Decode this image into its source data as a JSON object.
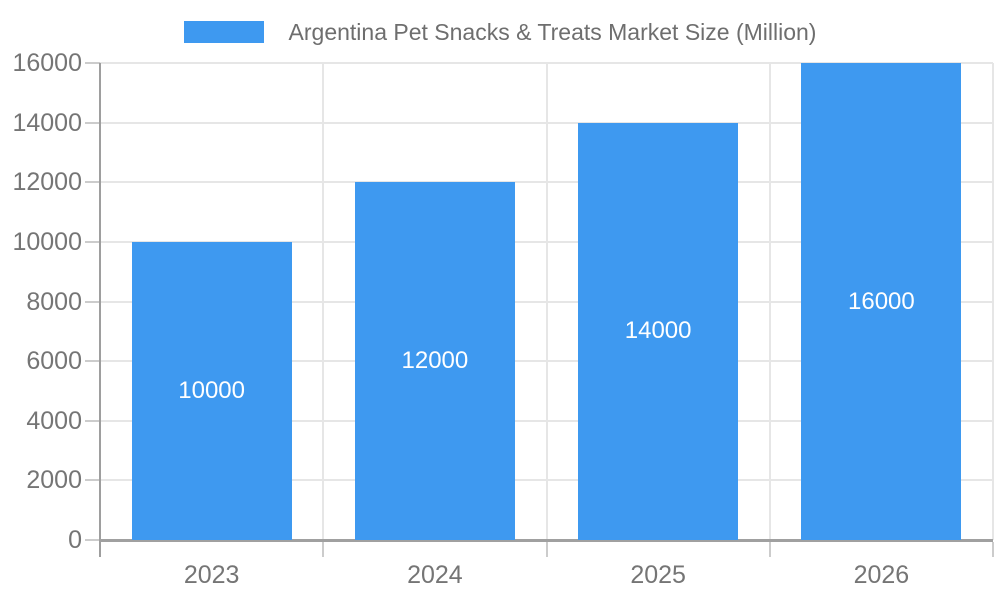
{
  "legend": {
    "label": "Argentina Pet Snacks & Treats Market Size (Million)",
    "swatch_color": "#3E99F0"
  },
  "chart_data": {
    "type": "bar",
    "title": "Argentina Pet Snacks & Treats Market Size (Million)",
    "categories": [
      "2023",
      "2024",
      "2025",
      "2026"
    ],
    "values": [
      10000,
      12000,
      14000,
      16000
    ],
    "data_labels": [
      "10000",
      "12000",
      "14000",
      "16000"
    ],
    "xlabel": "",
    "ylabel": "",
    "ylim": [
      0,
      16000
    ],
    "yticks": [
      0,
      2000,
      4000,
      6000,
      8000,
      10000,
      12000,
      14000,
      16000
    ],
    "grid": true,
    "legend_position": "top",
    "colors": {
      "bar": "#3E99F0",
      "data_label_text": "#ffffff",
      "axis_tick_text": "#757575",
      "legend_text": "#6e6e6e",
      "gridline": "#e6e6e6",
      "axis_line": "#9e9e9e",
      "tick_mark": "#cccccc"
    }
  }
}
